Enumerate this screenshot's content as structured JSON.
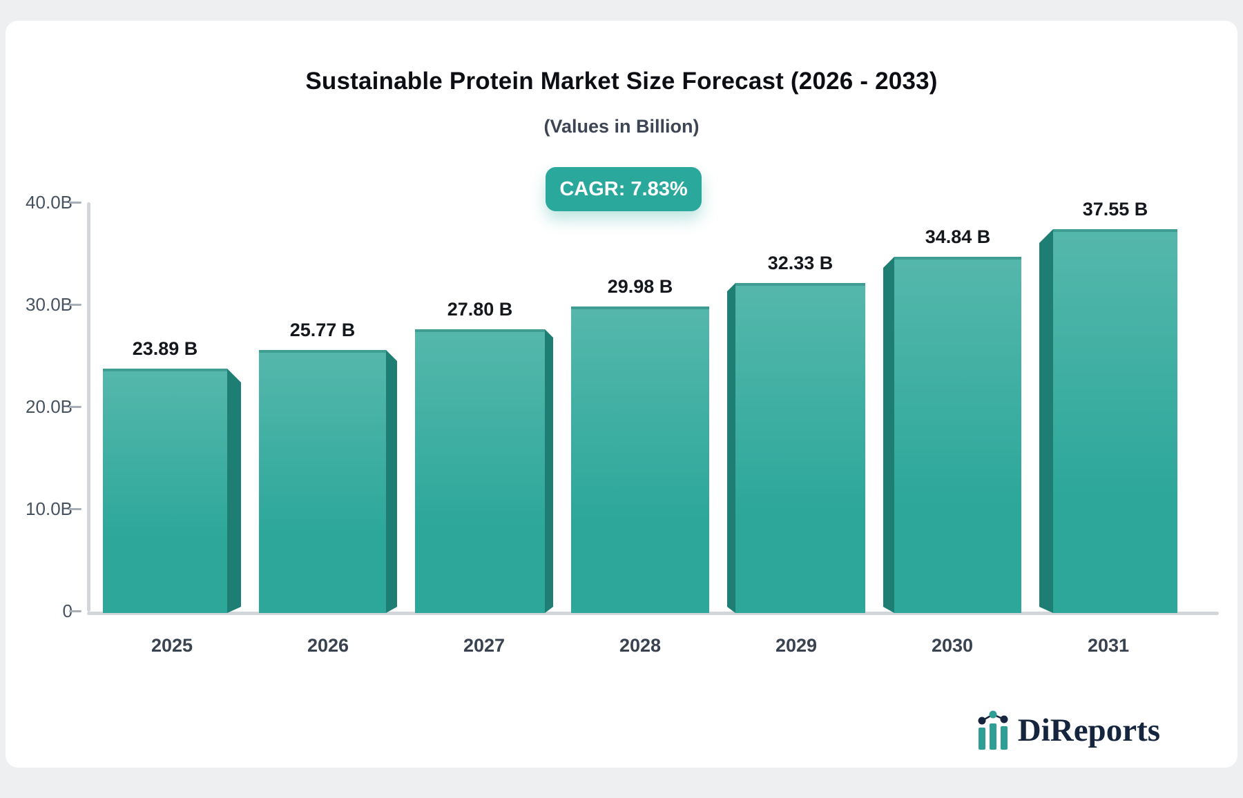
{
  "page": {
    "background": "#edeff1",
    "card_background": "#ffffff"
  },
  "chart_data": {
    "type": "bar",
    "title": "Sustainable Protein Market Size Forecast (2026 - 2033)",
    "subtitle": "(Values in Billion)",
    "badge_label": "CAGR: 7.83%",
    "categories": [
      "2025",
      "2026",
      "2027",
      "2028",
      "2029",
      "2030",
      "2031"
    ],
    "values": [
      23.89,
      25.77,
      27.8,
      29.98,
      32.33,
      34.84,
      37.55
    ],
    "value_labels": [
      "23.89 B",
      "25.77 B",
      "27.80 B",
      "29.98 B",
      "32.33 B",
      "34.84 B",
      "37.55 B"
    ],
    "y_axis": {
      "tick_labels": [
        "40.0B",
        "30.0B",
        "20.0B",
        "10.0B",
        "0"
      ],
      "tick_values": [
        40,
        30,
        20,
        10,
        0
      ],
      "ylim": [
        0,
        40
      ]
    },
    "grid": false,
    "legend": "none",
    "style": "3d-beveled-bars, perspective vanishing point at center",
    "colors": {
      "bar_face_top": "#55b7ac",
      "bar_face_bottom": "#2ca79a",
      "bar_top_edge": "#3f9d92",
      "bar_side": "#1f7e73",
      "axis_line": "#d2d6da",
      "tick_mark": "#a8afb9",
      "tick_text": "#46525f",
      "category_text": "#39424f",
      "value_text": "#14181d",
      "badge_bg": "#2aa89c",
      "badge_text": "#ffffff"
    }
  },
  "brand": {
    "name": "DiReports",
    "icon": "bar-chart-sparkline-icon",
    "text_color": "#16253e",
    "icon_bar_color": "#2f9e95",
    "icon_dot_color": "#16253e"
  }
}
